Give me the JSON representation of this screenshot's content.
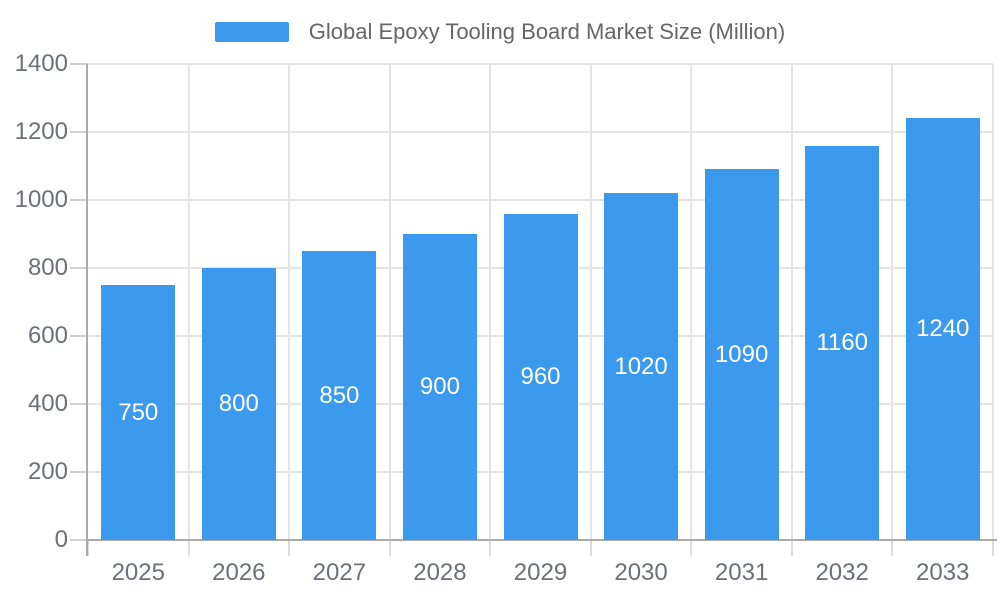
{
  "chart_data": {
    "type": "bar",
    "title": "Global Epoxy Tooling Board Market Size (Million)",
    "series_name": "Global Epoxy Tooling Board Market Size (Million)",
    "categories": [
      "2025",
      "2026",
      "2027",
      "2028",
      "2029",
      "2030",
      "2031",
      "2032",
      "2033"
    ],
    "values": [
      750,
      800,
      850,
      900,
      960,
      1020,
      1090,
      1160,
      1240
    ],
    "xlabel": "",
    "ylabel": "",
    "ylim": [
      0,
      1400
    ],
    "yticks": [
      0,
      200,
      400,
      600,
      800,
      1000,
      1200,
      1400
    ],
    "grid": true,
    "legend_position": "top-center",
    "value_label_position": "inside-middle",
    "colors": {
      "bar": "#3B99EE",
      "value_label": "#FFFFFF",
      "axis_text": "#6E7079",
      "legend_text": "#666666",
      "grid_line": "#E4E4E4",
      "axis_line": "#AAAAAA",
      "y_tick_line": "#D0D0D0",
      "x_tick_line": "#DCDCDC",
      "background": "#FFFFFF"
    }
  },
  "legend": {
    "label": "Global Epoxy Tooling Board Market Size (Million)"
  }
}
